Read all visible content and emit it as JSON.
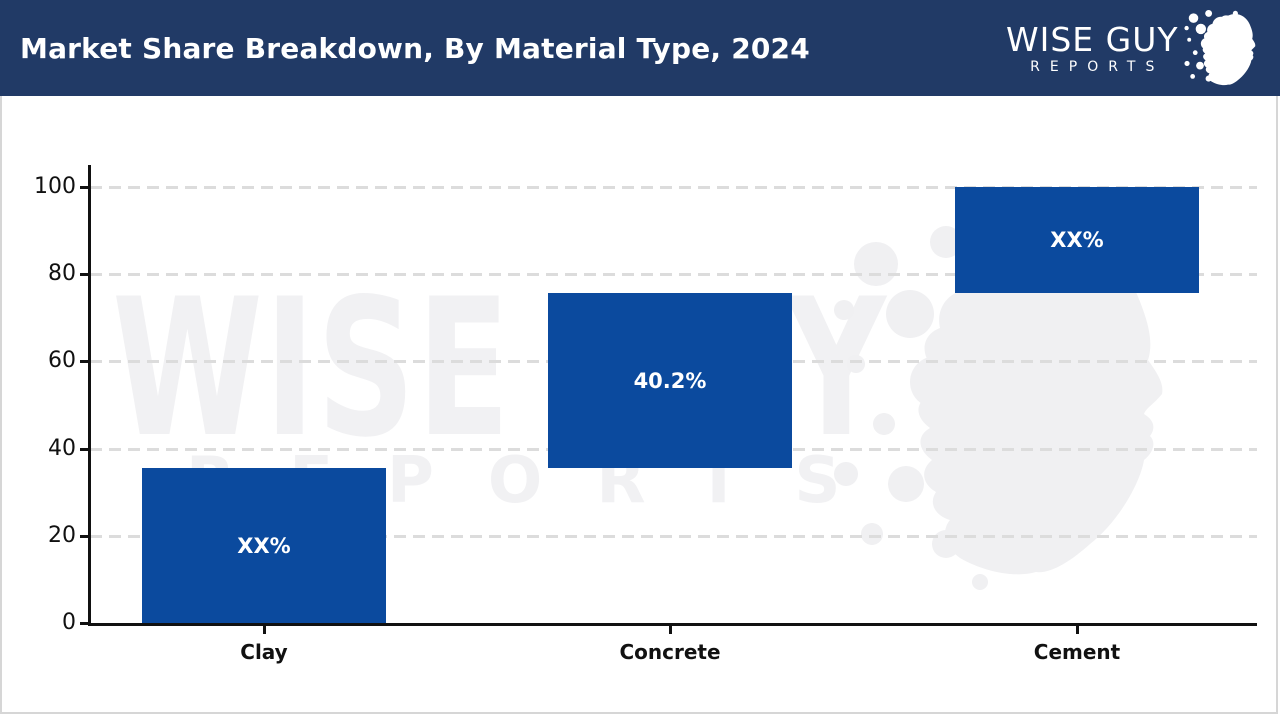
{
  "header": {
    "title": "Market Share Breakdown, By Material Type, 2024",
    "bg_color": "#213A66",
    "logo": {
      "line1": "WISE GUY",
      "line2": "REPORTS"
    }
  },
  "watermark": {
    "word1": "WISE GUY",
    "word2": "REPORTS"
  },
  "chart_data": {
    "type": "bar",
    "subtype": "waterfall",
    "title": "Market Share Breakdown, By Material Type, 2024",
    "categories": [
      "Clay",
      "Concrete",
      "Cement"
    ],
    "bars": [
      {
        "category": "Clay",
        "label": "XX%",
        "start": 0,
        "end": 35.5
      },
      {
        "category": "Concrete",
        "label": "40.2%",
        "start": 35.5,
        "end": 75.7
      },
      {
        "category": "Cement",
        "label": "XX%",
        "start": 75.7,
        "end": 100
      }
    ],
    "xlabel": "",
    "ylabel": "",
    "ylim": [
      0,
      105
    ],
    "yticks": [
      0,
      20,
      40,
      60,
      80,
      100
    ],
    "grid": "horizontal-dashed",
    "legend": "none",
    "bar_color": "#0B4A9E",
    "bar_label_color": "#ffffff",
    "grid_color": "#dcdcdc",
    "axis_color": "#111111"
  }
}
